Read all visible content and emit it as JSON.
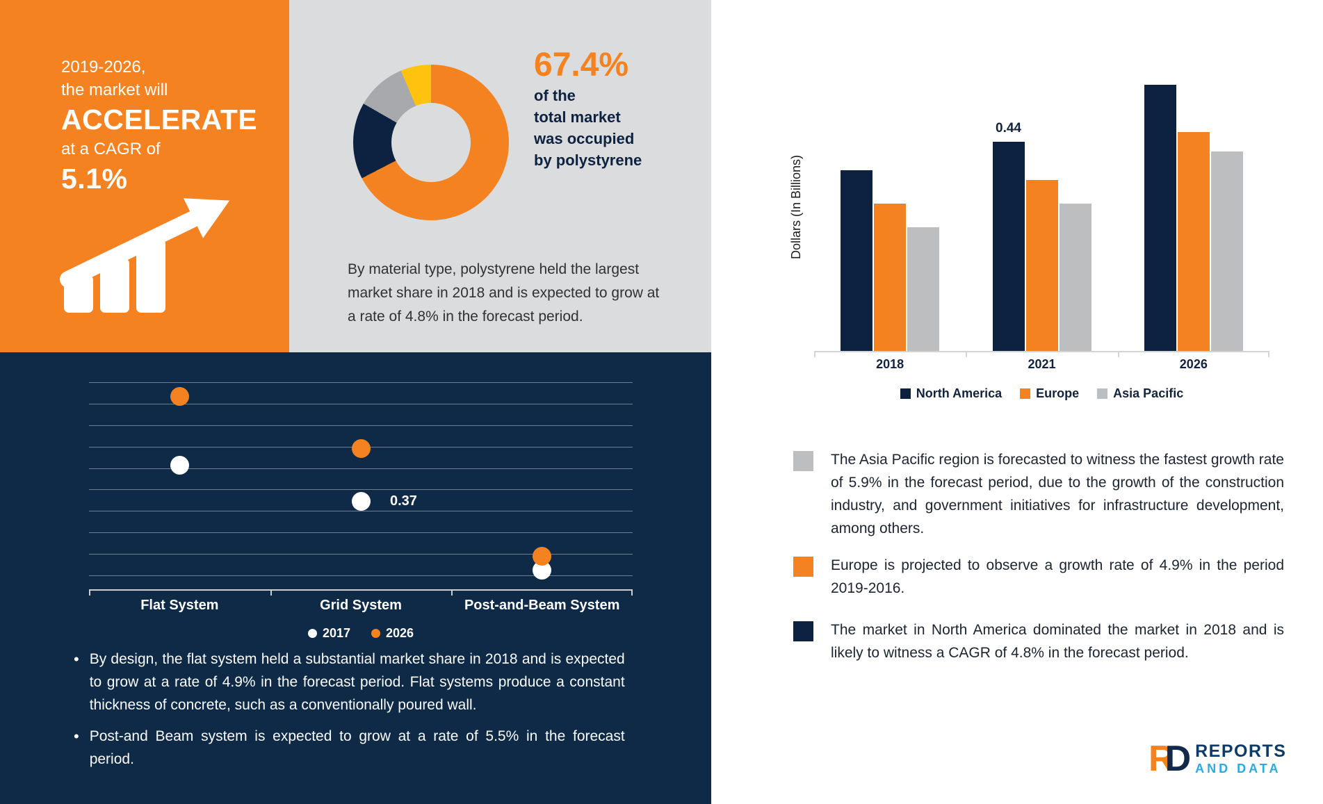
{
  "colors": {
    "orange": "#F58220",
    "navy_panel": "#0E2A47",
    "navy_dark": "#0D2240",
    "gray_panel": "#DBDCDD",
    "gray_bar": "#BCBEC0",
    "yellow": "#FFC20E"
  },
  "promo": {
    "line1": "2019-2026,",
    "line2": "the market will",
    "accelerate": "ACCELERATE",
    "line4": "at a CAGR of",
    "cagr": "5.1%"
  },
  "donut_section": {
    "headline_value": "67.4%",
    "headline_lines": [
      "of the",
      "total market",
      "was occupied",
      "by polystyrene"
    ],
    "body": "By material type, polystyrene held the largest market share in 2018 and is expected to grow at a rate of 4.8% in the forecast period."
  },
  "design_section": {
    "bullets": [
      "By design, the flat system held a substantial market share in 2018 and is expected to grow at a rate of 4.9% in the forecast period. Flat systems produce a constant thickness of concrete, such as a conventionally poured wall.",
      "Post-and Beam system is expected to grow at a rate of 5.5% in the forecast period."
    ]
  },
  "regional_section": {
    "bullets": [
      {
        "color": "#BCBEC0",
        "text": "The Asia Pacific region is forecasted to witness the fastest growth rate of 5.9% in the forecast period, due to the growth of the construction industry, and government initiatives for infrastructure development, among others."
      },
      {
        "color": "#F58220",
        "text": "Europe is projected to observe a growth rate of 4.9% in the period 2019-2016."
      },
      {
        "color": "#0D2240",
        "text": "The market in North America dominated the market in 2018 and is likely to witness a CAGR of 4.8% in the forecast period."
      }
    ]
  },
  "logo": {
    "glyph_r": "R",
    "glyph_d": "D",
    "line1": "REPORTS",
    "line2": "AND DATA"
  },
  "chart_data": [
    {
      "type": "pie",
      "subtype": "donut",
      "labels": [
        "Polystyrene",
        "",
        "",
        ""
      ],
      "values": [
        67.4,
        15.9,
        10.4,
        6.3
      ],
      "colors": [
        "#F58220",
        "#0D2240",
        "#A7A9AC",
        "#FFC20E"
      ],
      "annotation": "67.4% of the total market was occupied by polystyrene"
    },
    {
      "type": "scatter",
      "subtype": "dot-plot",
      "categories": [
        "Flat System",
        "Grid System",
        "Post-and-Beam System"
      ],
      "series": [
        {
          "name": "2017",
          "color": "#FFFFFF",
          "values": [
            0.52,
            0.37,
            0.08
          ]
        },
        {
          "name": "2026",
          "color": "#F58220",
          "values": [
            0.81,
            0.59,
            0.14
          ]
        }
      ],
      "ymax": 0.87,
      "grid": true,
      "legend_position": "bottom",
      "data_labels": [
        {
          "series": "2017",
          "category": "Grid System",
          "text": "0.37"
        }
      ]
    },
    {
      "type": "bar",
      "categories": [
        "2018",
        "2021",
        "2026"
      ],
      "series": [
        {
          "name": "North America",
          "color": "#0D2240",
          "values": [
            0.38,
            0.44,
            0.56
          ]
        },
        {
          "name": "Europe",
          "color": "#F58220",
          "values": [
            0.31,
            0.36,
            0.46
          ]
        },
        {
          "name": "Asia Pacific",
          "color": "#BCBEC0",
          "values": [
            0.26,
            0.31,
            0.42
          ]
        }
      ],
      "ylabel": "Dollars (In Billions)",
      "ymax": 0.585,
      "grid": false,
      "legend_position": "bottom",
      "data_labels": [
        {
          "series": "North America",
          "category": "2021",
          "text": "0.44"
        }
      ]
    }
  ]
}
